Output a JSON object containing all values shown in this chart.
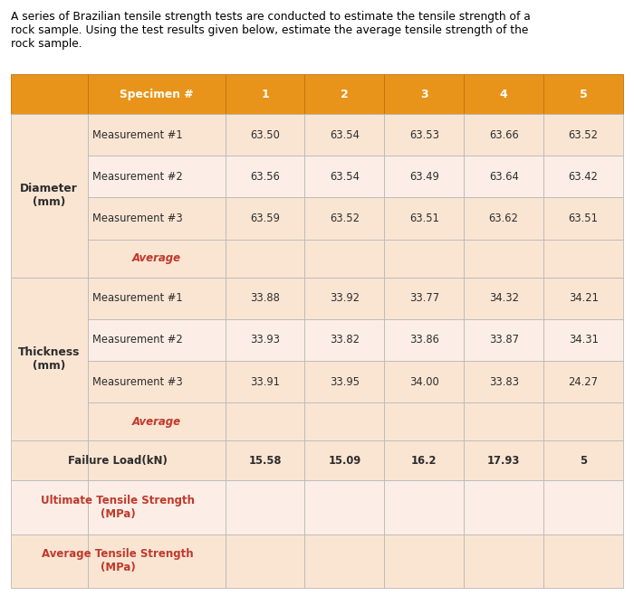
{
  "title_text": "A series of Brazilian tensile strength tests are conducted to estimate the tensile strength of a\nrock sample. Using the test results given below, estimate the average tensile strength of the\nrock sample.",
  "header_bg": "#E8941A",
  "header_text_color": "#FFFFFF",
  "light_bg1": "#FAE5D3",
  "light_bg2": "#FCEEE6",
  "orange_text_color": "#C0392B",
  "dark_text_color": "#2C2C2C",
  "col_headers": [
    "Specimen #",
    "1",
    "2",
    "3",
    "4",
    "5"
  ],
  "row_groups": [
    {
      "group_label": "Diameter\n(mm)",
      "rows": [
        {
          "label": "Measurement #1",
          "values": [
            "63.50",
            "63.54",
            "63.53",
            "63.66",
            "63.52"
          ],
          "is_average": false
        },
        {
          "label": "Measurement #2",
          "values": [
            "63.56",
            "63.54",
            "63.49",
            "63.64",
            "63.42"
          ],
          "is_average": false
        },
        {
          "label": "Measurement #3",
          "values": [
            "63.59",
            "63.52",
            "63.51",
            "63.62",
            "63.51"
          ],
          "is_average": false
        },
        {
          "label": "Average",
          "values": [
            "",
            "",
            "",
            "",
            ""
          ],
          "is_average": true
        }
      ]
    },
    {
      "group_label": "Thickness\n(mm)",
      "rows": [
        {
          "label": "Measurement #1",
          "values": [
            "33.88",
            "33.92",
            "33.77",
            "34.32",
            "34.21"
          ],
          "is_average": false
        },
        {
          "label": "Measurement #2",
          "values": [
            "33.93",
            "33.82",
            "33.86",
            "33.87",
            "34.31"
          ],
          "is_average": false
        },
        {
          "label": "Measurement #3",
          "values": [
            "33.91",
            "33.95",
            "34.00",
            "33.83",
            "24.27"
          ],
          "is_average": false
        },
        {
          "label": "Average",
          "values": [
            "",
            "",
            "",
            "",
            ""
          ],
          "is_average": true
        }
      ]
    }
  ],
  "bottom_rows": [
    {
      "label": "Failure Load(kN)",
      "values": [
        "15.58",
        "15.09",
        "16.2",
        "17.93",
        "5"
      ],
      "bold": true,
      "orange": false
    },
    {
      "label": "Ultimate Tensile Strength\n(MPa)",
      "values": [
        "",
        "",
        "",
        "",
        ""
      ],
      "bold": true,
      "orange": true
    },
    {
      "label": "Average Tensile Strength\n(MPa)",
      "values": [
        "",
        "",
        "",
        "",
        ""
      ],
      "bold": true,
      "orange": true
    }
  ]
}
